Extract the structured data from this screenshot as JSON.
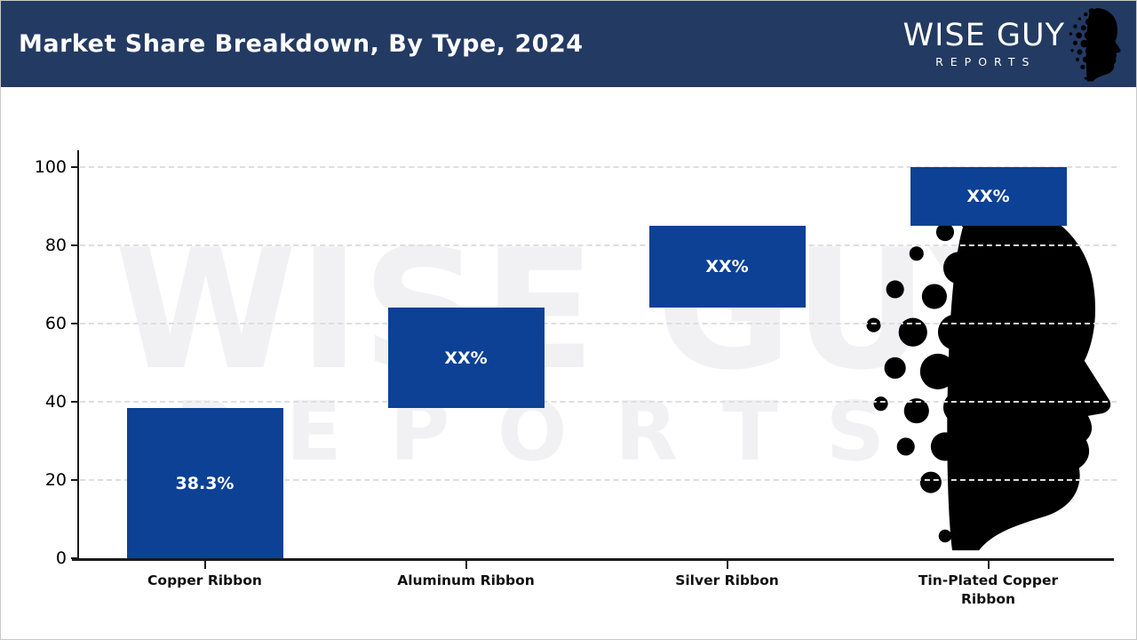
{
  "header": {
    "title": "Market Share Breakdown, By Type, 2024",
    "logo": {
      "wordmark": "WISE GUY",
      "subtext": "REPORTS"
    }
  },
  "watermark": {
    "wordmark": "WISE GUY",
    "subtext": "REPORTS"
  },
  "colors": {
    "header_bg": "#233a63",
    "bar_blue": "#0c4195",
    "axis_black": "#1a1a1a",
    "grid_gray": "#dedede",
    "watermark_gray": "#f1f1f3"
  },
  "chart_data": {
    "type": "bar",
    "subtype": "waterfall",
    "title": "Market Share Breakdown, By Type, 2024",
    "xlabel": "",
    "ylabel": "",
    "ylim": [
      0,
      100
    ],
    "yticks": [
      0,
      20,
      40,
      60,
      80,
      100
    ],
    "grid": "horizontal-dashed",
    "legend": "none",
    "categories": [
      "Copper Ribbon",
      "Aluminum Ribbon",
      "Silver Ribbon",
      "Tin-Plated Copper Ribbon"
    ],
    "bars": [
      {
        "category": "Copper Ribbon",
        "start": 0,
        "end": 38.3,
        "label": "38.3%"
      },
      {
        "category": "Aluminum Ribbon",
        "start": 38.3,
        "end": 64,
        "label": "XX%"
      },
      {
        "category": "Silver Ribbon",
        "start": 64,
        "end": 85,
        "label": "XX%"
      },
      {
        "category": "Tin-Plated Copper Ribbon",
        "start": 85,
        "end": 100,
        "label": "XX%"
      }
    ]
  }
}
